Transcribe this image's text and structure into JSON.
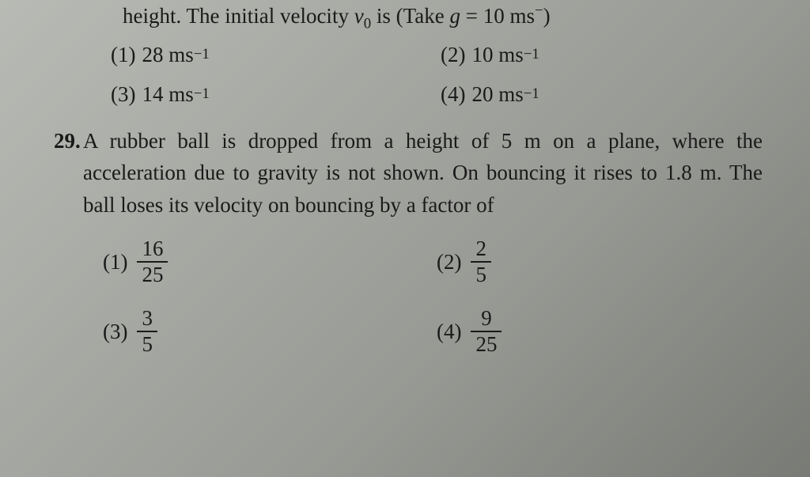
{
  "page": {
    "background_gradient": [
      "#b8bab5",
      "#a8aaa5",
      "#989a95",
      "#787a75"
    ],
    "text_color": "#1a1a1a",
    "font_family": "Times New Roman",
    "base_fontsize": 27
  },
  "partial_q": {
    "text_prefix": "height. The initial velocity ",
    "var": "v",
    "var_sub": "0",
    "text_mid": " is (Take ",
    "g_var": "g",
    "g_val": " = 10 ms",
    "g_exp": "−",
    "text_end": ")",
    "options": [
      {
        "num": "(1)",
        "val": "28 ms",
        "exp": "−1"
      },
      {
        "num": "(2)",
        "val": "10 ms",
        "exp": "−1"
      },
      {
        "num": "(3)",
        "val": "14 ms",
        "exp": "−1"
      },
      {
        "num": "(4)",
        "val": "20 ms",
        "exp": "−1"
      }
    ]
  },
  "q29": {
    "number": "29.",
    "text": "A rubber ball is dropped from a height of 5 m on a plane, where the acceleration due to gravity is not shown. On bouncing it rises to 1.8 m. The ball loses its velocity on bouncing by a factor of",
    "options": [
      {
        "num": "(1)",
        "numer": "16",
        "denom": "25"
      },
      {
        "num": "(2)",
        "numer": "2",
        "denom": "5"
      },
      {
        "num": "(3)",
        "numer": "3",
        "denom": "5"
      },
      {
        "num": "(4)",
        "numer": "9",
        "denom": "25"
      }
    ]
  }
}
